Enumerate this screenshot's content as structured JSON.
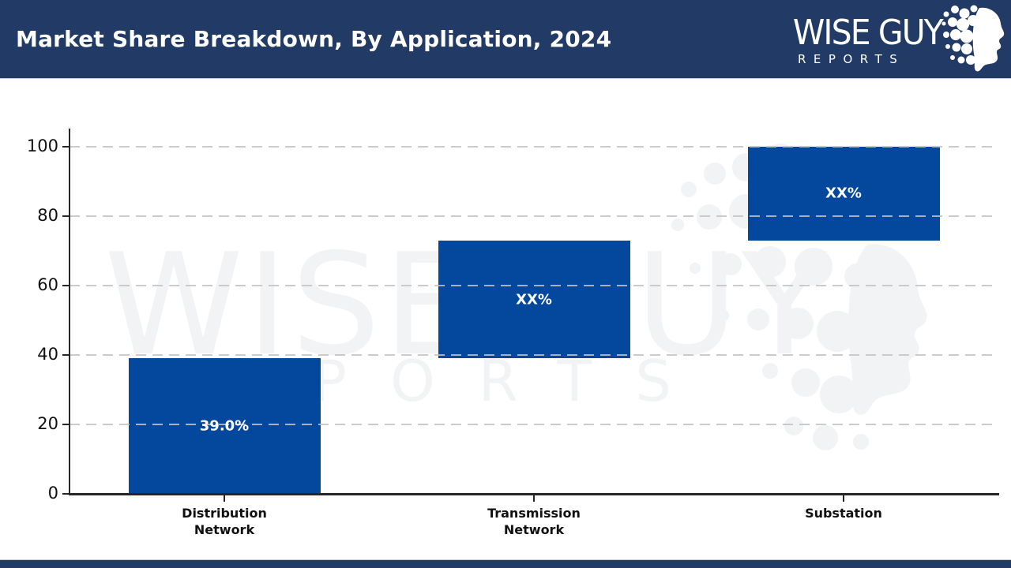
{
  "header": {
    "title": "Market Share Breakdown, By Application, 2024",
    "logo": {
      "line1": "WISE GUY",
      "line2": "REPORTS"
    }
  },
  "watermark": {
    "line1": "WISE GUY",
    "line2": "REPORTS"
  },
  "colors": {
    "header_bg": "#213a66",
    "bar_blue": "#04489e",
    "grid": "#c8c8c8",
    "watermark": "#f2f3f5",
    "footer_bg": "#213a66"
  },
  "chart_data": {
    "type": "bar",
    "subtype": "floating-waterfall",
    "title": "Market Share Breakdown, By Application, 2024",
    "categories": [
      "Distribution Network",
      "Transmission Network",
      "Substation"
    ],
    "bars": [
      {
        "category_lines": [
          "Distribution",
          "Network"
        ],
        "start": 0,
        "end": 39,
        "value_label": "39.0%"
      },
      {
        "category_lines": [
          "Transmission",
          "Network"
        ],
        "start": 39,
        "end": 73,
        "value_label": "XX%"
      },
      {
        "category_lines": [
          "Substation"
        ],
        "start": 73,
        "end": 100,
        "value_label": "XX%"
      }
    ],
    "xlabel": "",
    "ylabel": "",
    "ylim": [
      0,
      100
    ],
    "yticks": [
      0,
      20,
      40,
      60,
      80,
      100
    ],
    "grid": "horizontal-dashed",
    "legend": "none",
    "bar_color": "#04489e"
  }
}
